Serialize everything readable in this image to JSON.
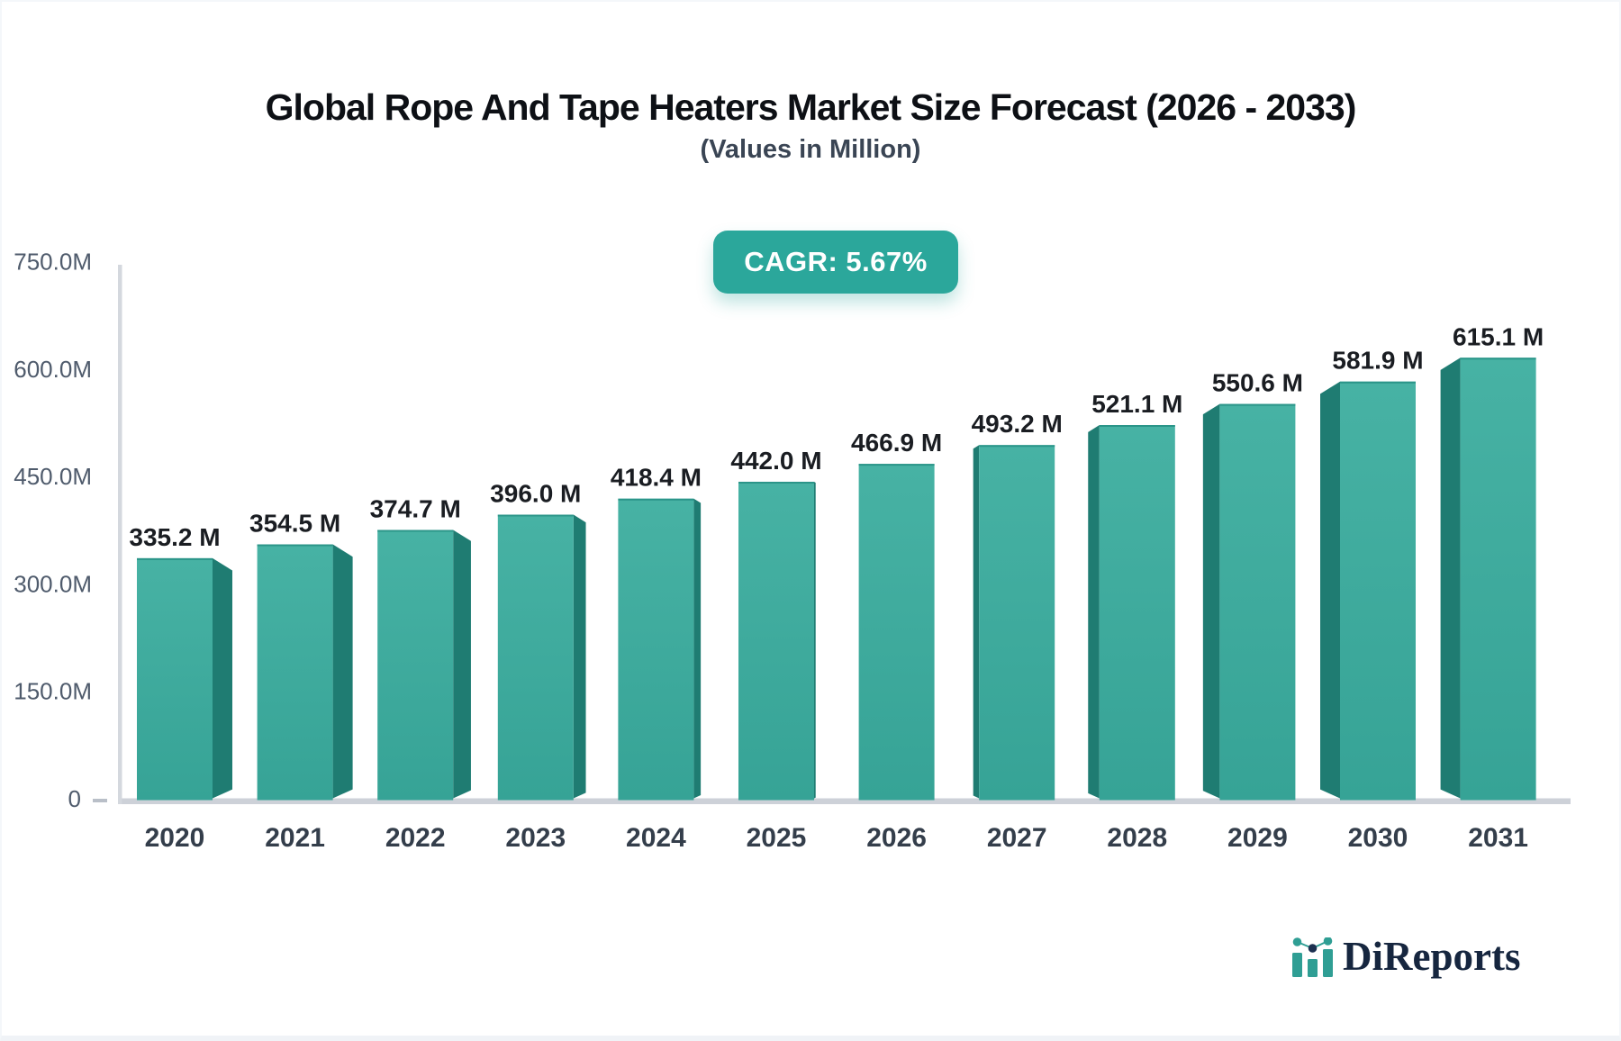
{
  "title": "Global Rope And Tape Heaters Market Size Forecast (2026 - 2033)",
  "subtitle": "(Values in Million)",
  "badge": {
    "label": "CAGR: 5.67%",
    "bg_color": "#2BA79B"
  },
  "chart_data": {
    "type": "bar",
    "title": "Global Rope And Tape Heaters Market Size Forecast (2026 - 2033)",
    "subtitle": "(Values in Million)",
    "unit": "Million",
    "categories": [
      "2020",
      "2021",
      "2022",
      "2023",
      "2024",
      "2025",
      "2026",
      "2027",
      "2028",
      "2029",
      "2030",
      "2031"
    ],
    "values": [
      335.2,
      354.5,
      374.7,
      396.0,
      418.4,
      442.0,
      466.9,
      493.2,
      521.1,
      550.6,
      581.9,
      615.1
    ],
    "value_labels": [
      "335.2 M",
      "354.5 M",
      "374.7 M",
      "396.0 M",
      "418.4 M",
      "442.0 M",
      "466.9 M",
      "493.2 M",
      "521.1 M",
      "550.6 M",
      "581.9 M",
      "615.1 M"
    ],
    "ylim": [
      0,
      750
    ],
    "y_ticks": [
      {
        "value": 750,
        "label": "750.0M"
      },
      {
        "value": 600,
        "label": "600.0M"
      },
      {
        "value": 450,
        "label": "450.0M"
      },
      {
        "value": 300,
        "label": "300.0M"
      },
      {
        "value": 150,
        "label": "150.0M"
      },
      {
        "value": 0,
        "label": "0"
      }
    ],
    "grid": false,
    "legend": "none",
    "style_3d": true,
    "colors": {
      "bar_face_top": "#47b2a4",
      "bar_face_bottom": "#36a396",
      "bar_top_edge": "#2b9589",
      "bar_side": "#1f7c72",
      "axis_line": "#d4d8de",
      "baseline": "#cdd1d8",
      "zero_tick": "#b9bfc8",
      "tick_label": "#4f5b6c",
      "category_label": "#343e4b",
      "value_label": "#1a1d22"
    }
  },
  "logo": {
    "text": "DiReports",
    "icon": "logo-bar-chart-icon",
    "text_color": "#16263f",
    "icon_bar_color": "#2f9e94",
    "icon_dot_dark_color": "#1d3050"
  }
}
